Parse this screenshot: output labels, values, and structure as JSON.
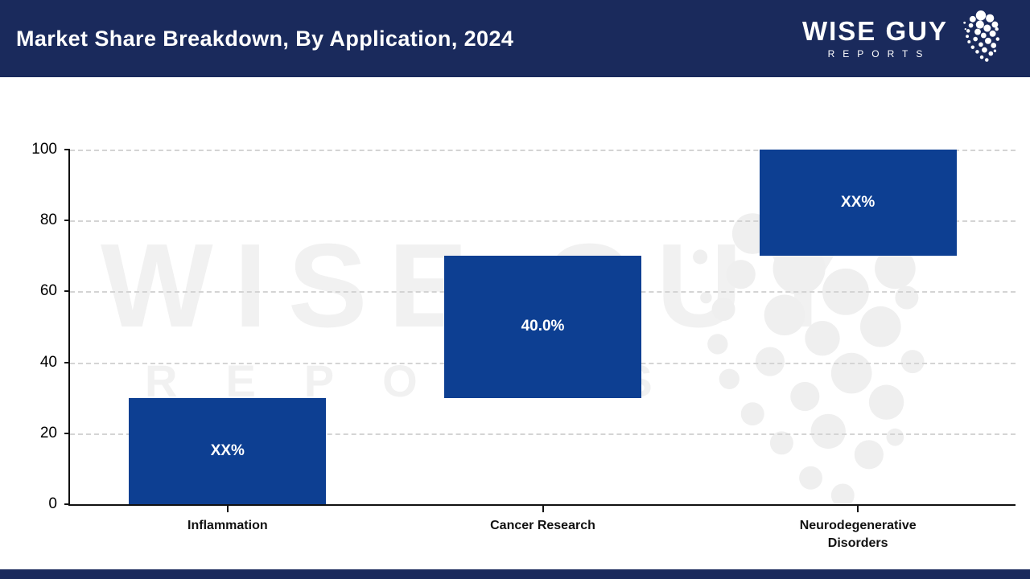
{
  "header": {
    "title": "Market Share Breakdown, By Application, 2024",
    "logo": {
      "line1": "WISE GUY",
      "line2": "REPORTS"
    }
  },
  "watermark": {
    "line1": "WISE GUY",
    "line2": "REPORTS"
  },
  "colors": {
    "header_bg": "#1a2a5c",
    "bar": "#0d3f92",
    "grid": "#d4d4d4",
    "axis": "#111111",
    "bar_label_text": "#ffffff",
    "watermark": "#f1f1f1"
  },
  "chart_data": {
    "type": "bar",
    "subtype": "floating-waterfall",
    "title": "Market Share Breakdown, By Application, 2024",
    "categories": [
      "Inflammation",
      "Cancer Research",
      "Neurodegenerative Disorders"
    ],
    "bars": [
      {
        "category": "Inflammation",
        "start": 0,
        "end": 30,
        "label": "XX%"
      },
      {
        "category": "Cancer Research",
        "start": 30,
        "end": 70,
        "label": "40.0%"
      },
      {
        "category": "Neurodegenerative Disorders",
        "start": 70,
        "end": 100,
        "label": "XX%"
      }
    ],
    "xlabel": "",
    "ylabel": "",
    "ylim": [
      0,
      100
    ],
    "yticks": [
      0,
      20,
      40,
      60,
      80,
      100
    ],
    "grid": true,
    "legend": false
  }
}
